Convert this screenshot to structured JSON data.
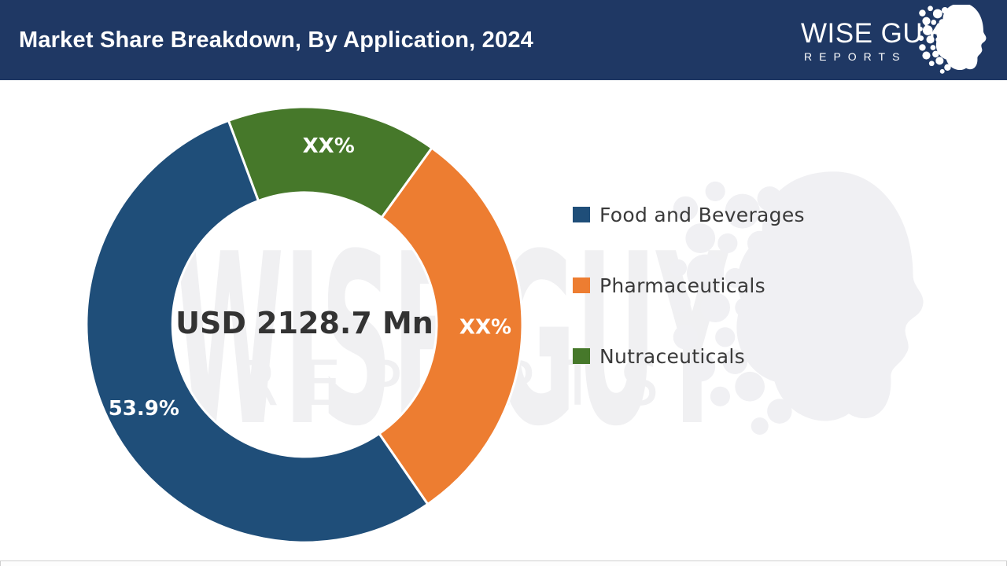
{
  "header": {
    "title": "Market Share Breakdown, By Application, 2024",
    "bg_color": "#1f3864",
    "logo": {
      "line1": "WISE GUY",
      "line2": "REPORTS"
    }
  },
  "watermark": {
    "line1": "WISE GUY",
    "line2": "REPORTS",
    "color": "#f0f0f2"
  },
  "chart_data": {
    "type": "pie",
    "subtype": "donut",
    "title": "Market Share Breakdown, By Application, 2024",
    "center_label": "USD 2128.7 Mn",
    "start_angle_deg": 110.4,
    "direction": "clockwise",
    "inner_radius_ratio": 0.6065,
    "legend_position": "right",
    "segments": [
      {
        "name": "Nutraceuticals",
        "value": 15.6,
        "label": "XX%",
        "color": "#46782a"
      },
      {
        "name": "Pharmaceuticals",
        "value": 30.5,
        "label": "XX%",
        "color": "#ed7d31"
      },
      {
        "name": "Food and Beverages",
        "value": 53.9,
        "label": "53.9%",
        "color": "#1f4e79"
      }
    ],
    "legend": [
      {
        "label": "Food and Beverages",
        "color": "#1f4e79"
      },
      {
        "label": "Pharmaceuticals",
        "color": "#ed7d31"
      },
      {
        "label": "Nutraceuticals",
        "color": "#46782a"
      }
    ]
  }
}
